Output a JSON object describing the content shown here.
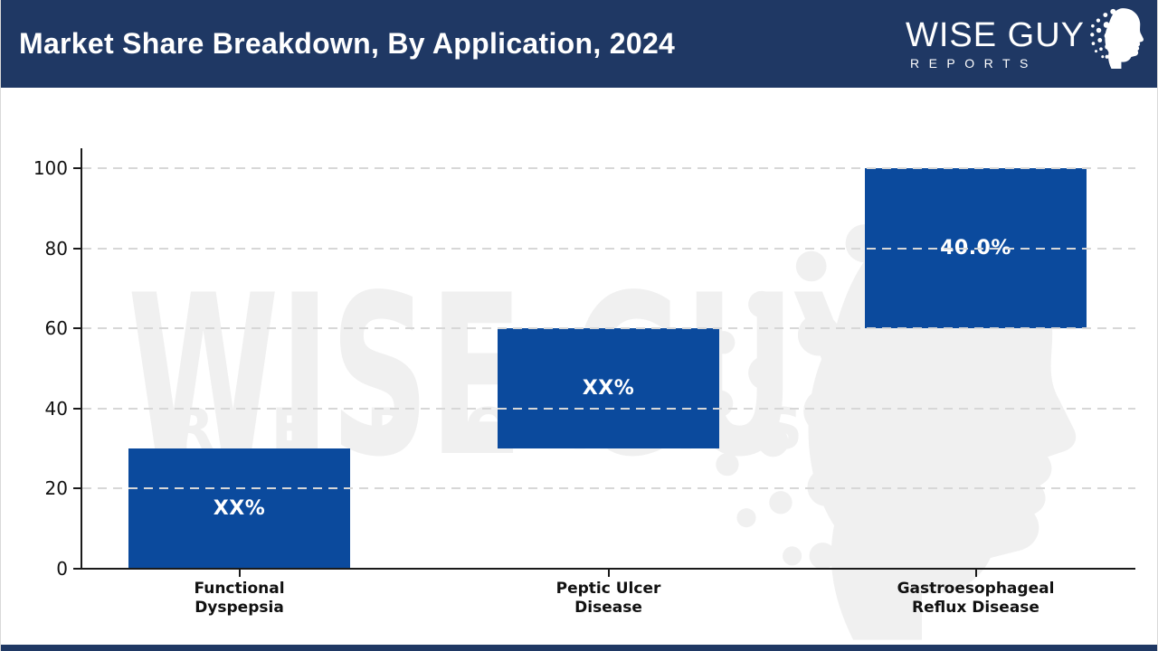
{
  "colors": {
    "accent_navy": "#1f3864",
    "bar_blue": "#0b4a9d",
    "grid_gray": "#d7d7d7",
    "watermark_gray": "#f0f0f0",
    "border_gray": "#d9d9d9"
  },
  "header": {
    "title": "Market Share Breakdown, By Application, 2024",
    "logo": {
      "line1": "WISE GUY",
      "line2": "REPORTS"
    }
  },
  "watermark": {
    "line1": "WISE GUY",
    "line2": "REPORTS"
  },
  "chart_data": {
    "type": "bar",
    "variant": "waterfall-breakdown",
    "title": "Market Share Breakdown, By Application, 2024",
    "categories": [
      "Functional Dyspepsia",
      "Peptic Ulcer Disease",
      "Gastroesophageal Reflux Disease"
    ],
    "category_label_lines": [
      [
        "Functional",
        "Dyspepsia"
      ],
      [
        "Peptic Ulcer",
        "Disease"
      ],
      [
        "Gastroesophageal",
        "Reflux Disease"
      ]
    ],
    "bars": [
      {
        "category": "Functional Dyspepsia",
        "from": 0,
        "to": 30,
        "label": "XX%"
      },
      {
        "category": "Peptic Ulcer Disease",
        "from": 30,
        "to": 60,
        "label": "XX%"
      },
      {
        "category": "Gastroesophageal Reflux Disease",
        "from": 60,
        "to": 100,
        "label": "40.0%"
      }
    ],
    "ylim": [
      0,
      100
    ],
    "yticks": [
      0,
      20,
      40,
      60,
      80,
      100
    ],
    "grid": "dashed-horizontal",
    "legend": "none",
    "bar_color": "#0b4a9d"
  }
}
